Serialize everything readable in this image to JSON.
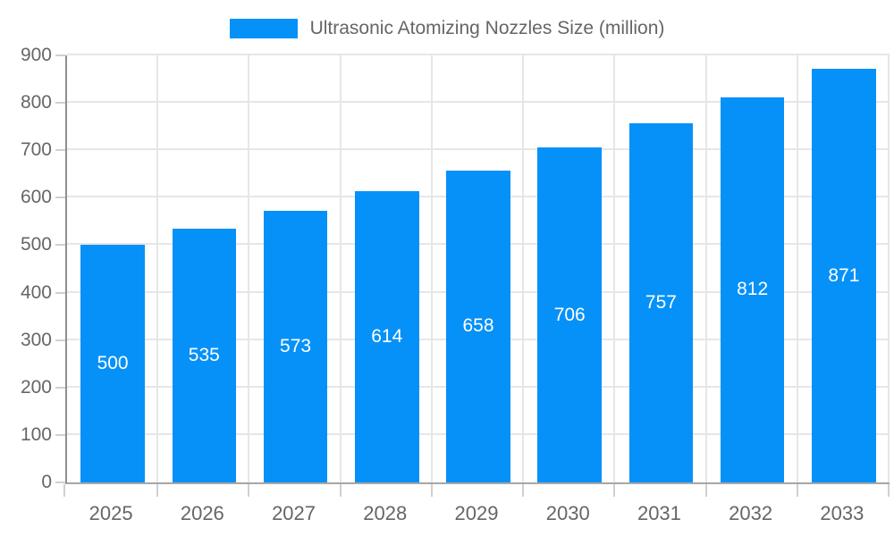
{
  "chart_data": {
    "type": "bar",
    "title": "Ultrasonic Atomizing Nozzles Size (million)",
    "categories": [
      "2025",
      "2026",
      "2027",
      "2028",
      "2029",
      "2030",
      "2031",
      "2032",
      "2033"
    ],
    "values": [
      500,
      535,
      573,
      614,
      658,
      706,
      757,
      812,
      871
    ],
    "xlabel": "",
    "ylabel": "",
    "ylim": [
      0,
      900
    ],
    "ytick_step": 100,
    "ytick_labels": [
      "0",
      "100",
      "200",
      "300",
      "400",
      "500",
      "600",
      "700",
      "800",
      "900"
    ],
    "grid": true,
    "legend_position": "top-center",
    "bar_width_fraction": 0.7,
    "colors": {
      "bar": "#0691F8",
      "bar_label_text": "#FFFFFF",
      "axis_text": "#666666",
      "grid_line": "#E6E6E6",
      "y_axis_line": "#8F8F8F",
      "x_axis_line": "#A6A6A6",
      "tick": "#D0D0D0",
      "background": "#FFFFFF"
    }
  },
  "legend": {
    "swatch_icon": "series-color-swatch",
    "label": "Ultrasonic Atomizing Nozzles Size (million)"
  }
}
